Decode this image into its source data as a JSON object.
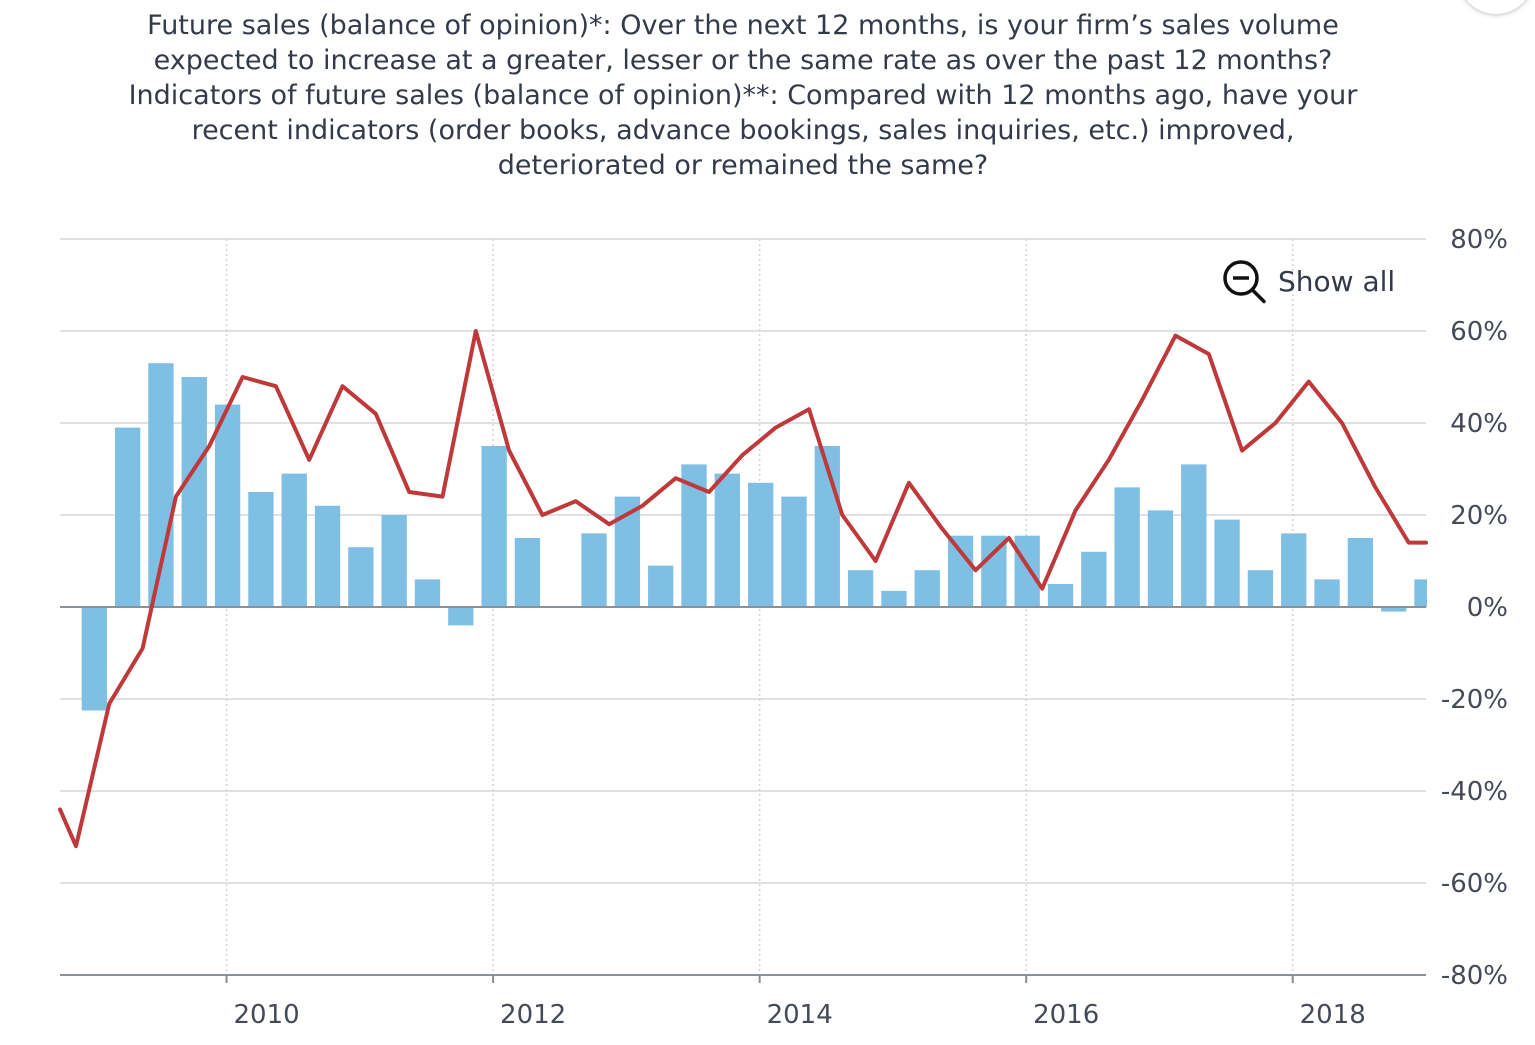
{
  "chart_data": {
    "type": "bar",
    "title_lines": [
      "Future sales (balance of opinion)*: Over the next 12 months, is your firm’s sales volume",
      "expected to increase at a greater, lesser or the same rate as over the past 12 months?",
      "Indicators of future sales (balance of opinion)**: Compared with 12 months ago, have your",
      "recent indicators (order books, advance bookings, sales inquiries, etc.) improved,",
      "deteriorated or remained the same?"
    ],
    "xlabel": "",
    "ylabel": "",
    "ylim": [
      -80,
      80
    ],
    "yticks": [
      80,
      60,
      40,
      20,
      0,
      -20,
      -40,
      -60,
      -80
    ],
    "ytick_labels": [
      "80%",
      "60%",
      "40%",
      "20%",
      "0%",
      "-20%",
      "-40%",
      "-60%",
      "-80%"
    ],
    "xlim": [
      2008.75,
      2019.0
    ],
    "xticks": [
      2010,
      2012,
      2014,
      2016,
      2018
    ],
    "xtick_labels": [
      "2010",
      "2012",
      "2014",
      "2016",
      "2018"
    ],
    "grid": true,
    "series": [
      {
        "type": "bar",
        "color": "#7fbfe3",
        "x": [
          2009.0,
          2009.25,
          2009.5,
          2009.75,
          2010.0,
          2010.25,
          2010.5,
          2010.75,
          2011.0,
          2011.25,
          2011.5,
          2011.75,
          2012.0,
          2012.25,
          2012.5,
          2012.75,
          2013.0,
          2013.25,
          2013.5,
          2013.75,
          2014.0,
          2014.25,
          2014.5,
          2014.75,
          2015.0,
          2015.25,
          2015.5,
          2015.75,
          2016.0,
          2016.25,
          2016.5,
          2016.75,
          2017.0,
          2017.25,
          2017.5,
          2017.75,
          2018.0,
          2018.25,
          2018.5,
          2018.75,
          2019.0
        ],
        "values": [
          -22.5,
          39,
          53,
          50,
          44,
          25,
          29,
          22,
          13,
          20,
          6,
          -4,
          35,
          15,
          0,
          16,
          24,
          9,
          31,
          29,
          27,
          24,
          35,
          8,
          3.5,
          8,
          15.5,
          15.5,
          15.5,
          5,
          12,
          26,
          21,
          31,
          19,
          8,
          16,
          6,
          15,
          -1,
          6
        ]
      },
      {
        "type": "line",
        "color": "#c0393a",
        "x": [
          2008.75,
          2008.87,
          2009.12,
          2009.37,
          2009.62,
          2009.87,
          2010.12,
          2010.37,
          2010.62,
          2010.87,
          2011.12,
          2011.37,
          2011.62,
          2011.87,
          2012.12,
          2012.37,
          2012.62,
          2012.87,
          2013.12,
          2013.37,
          2013.62,
          2013.87,
          2014.12,
          2014.37,
          2014.62,
          2014.87,
          2015.12,
          2015.37,
          2015.62,
          2015.87,
          2016.12,
          2016.37,
          2016.62,
          2016.87,
          2017.12,
          2017.37,
          2017.62,
          2017.87,
          2018.12,
          2018.37,
          2018.62,
          2018.87,
          2019.0
        ],
        "values": [
          -44,
          -52,
          -21,
          -9,
          24,
          35,
          50,
          48,
          32,
          48,
          42,
          25,
          24,
          60,
          34,
          20,
          23,
          18,
          22,
          28,
          25,
          33,
          39,
          43,
          20,
          10,
          27,
          17,
          8,
          15,
          4,
          21,
          32,
          45,
          59,
          55,
          34,
          40,
          49,
          40,
          26,
          14,
          14
        ]
      }
    ]
  },
  "controls": {
    "show_all_label": "Show all",
    "show_all_icon": "zoom-out-icon"
  }
}
